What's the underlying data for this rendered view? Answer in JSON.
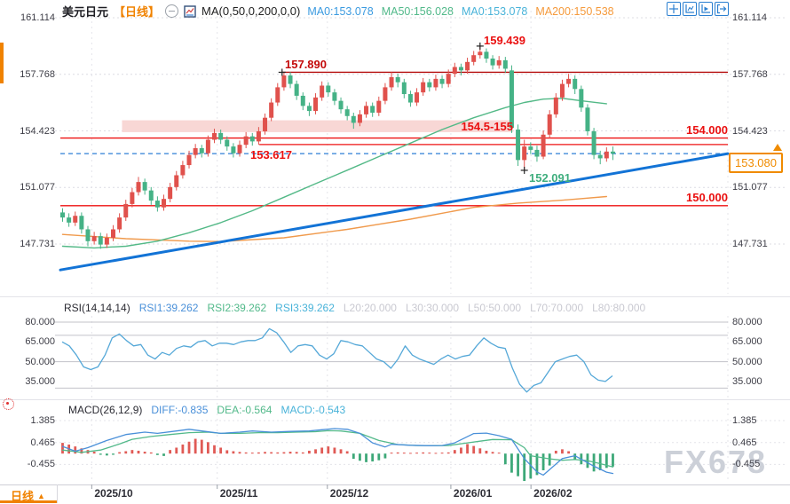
{
  "header": {
    "symbol": "美元日元",
    "timeframe": "【日线】",
    "ma_label": "MA(0,50,0,200,0,0)",
    "ma_values": [
      {
        "label": "MA0:153.078",
        "color": "#3a9ae0"
      },
      {
        "label": "MA50:156.028",
        "color": "#52b98a"
      },
      {
        "label": "MA0:153.078",
        "color": "#49b3d9"
      },
      {
        "label": "MA200:150.538",
        "color": "#f59a3c"
      }
    ]
  },
  "toolbar": {
    "icons": [
      "crosshair",
      "scale-left",
      "scale-play",
      "exit-right"
    ]
  },
  "price_axis": {
    "ticks": [
      "161.114",
      "157.768",
      "154.423",
      "151.077",
      "147.731"
    ]
  },
  "right_price_label": {
    "value": "153.080"
  },
  "x_axis": {
    "labels": [
      "2025/10",
      "2025/11",
      "2025/12",
      "2026/01",
      "2026/02"
    ],
    "fracs": [
      0.047,
      0.235,
      0.4,
      0.585,
      0.705
    ]
  },
  "bottom": {
    "timeframe": "日线",
    "arrow": "▲"
  },
  "watermark": "FX678",
  "rsi_header": {
    "title": "RSI(14,14,14)",
    "series": [
      {
        "label": "RSI1:39.262",
        "color": "#4a90d9"
      },
      {
        "label": "RSI2:39.262",
        "color": "#52b98a"
      },
      {
        "label": "RSI3:39.262",
        "color": "#49b3d9"
      }
    ],
    "levels": [
      "L20:20.000",
      "L30:30.000",
      "L50:50.000",
      "L70:70.000",
      "L80:80.000"
    ]
  },
  "macd_header": {
    "title": "MACD(26,12,9)",
    "values": [
      {
        "label": "DIFF:-0.835",
        "color": "#4a90d9"
      },
      {
        "label": "DEA:-0.564",
        "color": "#52b98a"
      },
      {
        "label": "MACD:-0.543",
        "color": "#49b3d9"
      }
    ]
  },
  "colors": {
    "up": "#e0514c",
    "down": "#45b286",
    "ma50": "#53b987",
    "ma200": "#f09a4c",
    "trend": "#1273d6",
    "current": "#2e7fd6",
    "rsi": "#55a8d8",
    "diff": "#4a90d9",
    "dea": "#52b98a",
    "histUp": "#e05a55",
    "histDown": "#3da878",
    "accent": "#f08200",
    "level": "#ee1111",
    "levelDark": "#b40b0b"
  },
  "chart_data": {
    "type": "candlestick",
    "title": "美元日元 日线 (USD/JPY daily)",
    "price": {
      "ylim": [
        144.8,
        161.7
      ],
      "candles": [
        [
          149.6,
          149.85,
          149.05,
          149.3
        ],
        [
          149.3,
          149.55,
          148.75,
          149.0
        ],
        [
          149.0,
          149.65,
          148.8,
          149.4
        ],
        [
          149.4,
          149.6,
          148.35,
          148.6
        ],
        [
          148.6,
          148.8,
          147.6,
          147.9
        ],
        [
          147.9,
          148.45,
          147.7,
          148.2
        ],
        [
          148.2,
          148.4,
          147.45,
          147.7
        ],
        [
          147.7,
          148.35,
          147.5,
          148.1
        ],
        [
          148.1,
          148.85,
          147.9,
          148.6
        ],
        [
          148.6,
          149.55,
          148.4,
          149.3
        ],
        [
          149.3,
          150.35,
          149.1,
          150.1
        ],
        [
          150.1,
          151.05,
          149.9,
          150.8
        ],
        [
          150.8,
          151.7,
          150.6,
          151.4
        ],
        [
          151.4,
          151.6,
          150.65,
          150.9
        ],
        [
          150.9,
          151.1,
          150.05,
          150.3
        ],
        [
          150.3,
          150.55,
          149.65,
          149.9
        ],
        [
          149.9,
          150.65,
          149.7,
          150.4
        ],
        [
          150.4,
          151.35,
          150.2,
          151.1
        ],
        [
          151.1,
          152.05,
          150.9,
          151.8
        ],
        [
          151.8,
          152.65,
          151.6,
          152.4
        ],
        [
          152.4,
          153.25,
          152.2,
          153.0
        ],
        [
          153.0,
          153.65,
          152.8,
          153.4
        ],
        [
          153.4,
          153.6,
          152.85,
          153.1
        ],
        [
          153.1,
          154.15,
          152.9,
          153.9
        ],
        [
          153.9,
          154.55,
          153.7,
          154.3
        ],
        [
          154.3,
          154.5,
          153.65,
          153.9
        ],
        [
          153.9,
          154.1,
          153.25,
          153.5
        ],
        [
          153.5,
          153.7,
          152.85,
          153.1
        ],
        [
          153.1,
          153.85,
          152.9,
          153.6
        ],
        [
          153.6,
          154.35,
          153.4,
          154.1
        ],
        [
          154.1,
          154.3,
          153.55,
          153.8
        ],
        [
          153.8,
          154.65,
          153.6,
          154.4
        ],
        [
          154.4,
          155.45,
          154.2,
          155.2
        ],
        [
          155.2,
          156.35,
          155.0,
          156.1
        ],
        [
          156.1,
          157.25,
          155.9,
          157.0
        ],
        [
          157.0,
          157.89,
          156.8,
          157.7
        ],
        [
          157.7,
          157.9,
          156.95,
          157.2
        ],
        [
          157.2,
          157.4,
          156.25,
          156.5
        ],
        [
          156.5,
          156.7,
          155.65,
          155.9
        ],
        [
          155.9,
          156.1,
          155.3,
          155.6
        ],
        [
          155.6,
          156.65,
          155.4,
          156.4
        ],
        [
          156.4,
          157.35,
          156.2,
          157.1
        ],
        [
          157.1,
          157.3,
          156.45,
          156.7
        ],
        [
          156.7,
          156.9,
          155.95,
          156.2
        ],
        [
          156.2,
          156.4,
          155.45,
          155.7
        ],
        [
          155.7,
          155.9,
          155.05,
          155.3
        ],
        [
          155.3,
          155.5,
          154.55,
          154.9
        ],
        [
          154.9,
          155.65,
          154.7,
          155.4
        ],
        [
          155.4,
          156.15,
          155.2,
          155.9
        ],
        [
          155.9,
          156.1,
          155.25,
          155.5
        ],
        [
          155.5,
          156.45,
          155.3,
          156.2
        ],
        [
          156.2,
          157.25,
          156.0,
          157.0
        ],
        [
          157.0,
          157.9,
          156.8,
          157.6
        ],
        [
          157.6,
          157.8,
          157.0,
          157.3
        ],
        [
          157.3,
          157.5,
          156.35,
          156.6
        ],
        [
          156.6,
          156.8,
          155.85,
          156.1
        ],
        [
          156.1,
          156.95,
          155.9,
          156.7
        ],
        [
          156.7,
          157.55,
          156.5,
          157.3
        ],
        [
          157.3,
          157.5,
          156.75,
          157.0
        ],
        [
          157.0,
          157.75,
          156.8,
          157.5
        ],
        [
          157.5,
          157.7,
          156.95,
          157.2
        ],
        [
          157.2,
          158.05,
          157.0,
          157.8
        ],
        [
          157.8,
          158.45,
          157.6,
          158.2
        ],
        [
          158.2,
          158.4,
          157.7,
          158.0
        ],
        [
          158.0,
          158.75,
          157.8,
          158.5
        ],
        [
          158.5,
          159.15,
          158.3,
          158.9
        ],
        [
          158.9,
          159.439,
          158.7,
          159.1
        ],
        [
          159.1,
          159.3,
          158.45,
          158.7
        ],
        [
          158.7,
          158.9,
          158.05,
          158.3
        ],
        [
          158.3,
          158.85,
          158.1,
          158.6
        ],
        [
          158.6,
          158.8,
          157.85,
          158.1
        ],
        [
          158.0,
          158.3,
          154.3,
          154.6
        ],
        [
          154.5,
          154.8,
          152.35,
          152.7
        ],
        [
          152.7,
          153.9,
          152.091,
          153.5
        ],
        [
          153.5,
          153.75,
          153.05,
          153.3
        ],
        [
          153.3,
          153.55,
          152.6,
          152.9
        ],
        [
          152.9,
          154.45,
          152.75,
          154.2
        ],
        [
          154.2,
          155.65,
          154.0,
          155.4
        ],
        [
          155.4,
          156.65,
          155.2,
          156.4
        ],
        [
          156.4,
          157.45,
          156.2,
          157.2
        ],
        [
          157.2,
          157.8,
          157.0,
          157.5
        ],
        [
          157.5,
          157.7,
          156.6,
          156.9
        ],
        [
          156.9,
          157.1,
          155.55,
          155.8
        ],
        [
          155.8,
          156.0,
          154.15,
          154.4
        ],
        [
          154.4,
          154.6,
          152.75,
          153.0
        ],
        [
          153.0,
          153.25,
          152.45,
          152.8
        ],
        [
          152.8,
          153.45,
          152.6,
          153.2
        ],
        [
          153.2,
          153.5,
          152.7,
          153.08
        ]
      ],
      "ma50_anchors": [
        [
          0,
          147.6
        ],
        [
          5,
          147.5
        ],
        [
          10,
          147.6
        ],
        [
          15,
          147.9
        ],
        [
          20,
          148.4
        ],
        [
          25,
          149.0
        ],
        [
          30,
          149.7
        ],
        [
          35,
          150.5
        ],
        [
          40,
          151.3
        ],
        [
          45,
          152.1
        ],
        [
          50,
          152.9
        ],
        [
          55,
          153.7
        ],
        [
          60,
          154.5
        ],
        [
          65,
          155.2
        ],
        [
          70,
          155.8
        ],
        [
          73,
          156.1
        ],
        [
          76,
          156.3
        ],
        [
          79,
          156.35
        ],
        [
          82,
          156.2
        ],
        [
          86,
          156.03
        ]
      ],
      "ma200_anchors": [
        [
          0,
          148.3
        ],
        [
          10,
          148.05
        ],
        [
          20,
          147.9
        ],
        [
          25,
          147.88
        ],
        [
          35,
          148.1
        ],
        [
          45,
          148.6
        ],
        [
          55,
          149.2
        ],
        [
          65,
          149.9
        ],
        [
          72,
          150.15
        ],
        [
          80,
          150.35
        ],
        [
          86,
          150.54
        ]
      ],
      "trendline": {
        "price1": 146.2,
        "price2": 153.08
      },
      "current_price": 153.08,
      "levels": [
        {
          "price": 157.89,
          "label": "157.890",
          "from_bar": 34.7,
          "dark": true
        },
        {
          "price": 154.0,
          "label": "154.000",
          "from_bar": null,
          "dark": false
        },
        {
          "price": 153.617,
          "label": "153.617",
          "from_bar": 31.1,
          "dark": false
        },
        {
          "price": 150.0,
          "label": "150.000",
          "from_bar": null,
          "dark": false
        }
      ],
      "zone": {
        "label": "154.5-155",
        "price_from": 154.35,
        "price_to": 155.05,
        "bar_from": 9.4,
        "bar_to": 71.2,
        "color": "#f8d7d5"
      },
      "markers": [
        {
          "bar": 66,
          "price": 159.439,
          "label": "159.439"
        },
        {
          "bar": 34.7,
          "price": 157.89,
          "label": ""
        },
        {
          "bar": 73,
          "price": 152.091,
          "label": "152.091"
        }
      ]
    },
    "rsi": {
      "ticks": [
        "80.000",
        "65.000",
        "50.000",
        "35.000"
      ],
      "gridlines": [
        80,
        70,
        50,
        30
      ],
      "values": [
        65,
        62,
        55,
        46,
        44,
        46,
        55,
        68,
        71,
        66,
        62,
        63,
        55,
        52,
        57,
        55,
        60,
        62,
        61,
        65,
        66,
        62,
        64,
        64,
        63,
        65,
        66,
        66,
        68,
        75,
        72,
        65,
        57,
        62,
        63,
        62,
        55,
        52,
        56,
        66,
        65,
        63,
        62,
        57,
        52,
        50,
        45,
        52,
        62,
        55,
        52,
        50,
        48,
        52,
        55,
        52,
        54,
        55,
        62,
        68,
        64,
        61,
        60,
        45,
        33,
        27,
        32,
        34,
        42,
        50,
        52,
        54,
        55,
        50,
        40,
        36,
        35,
        39.3
      ]
    },
    "macd": {
      "ticks": [
        "1.385",
        "0.465",
        "-0.455"
      ],
      "diff": [
        [
          0,
          0.3
        ],
        [
          2,
          0.1
        ],
        [
          4,
          0.25
        ],
        [
          7,
          0.55
        ],
        [
          10,
          0.8
        ],
        [
          13,
          0.9
        ],
        [
          15,
          0.85
        ],
        [
          18,
          0.95
        ],
        [
          20,
          1.02
        ],
        [
          22,
          0.95
        ],
        [
          25,
          0.85
        ],
        [
          28,
          0.9
        ],
        [
          30,
          0.95
        ],
        [
          33,
          0.9
        ],
        [
          36,
          0.93
        ],
        [
          39,
          0.95
        ],
        [
          41,
          1.0
        ],
        [
          43,
          1.05
        ],
        [
          45,
          1.02
        ],
        [
          47,
          0.85
        ],
        [
          49,
          0.45
        ],
        [
          51,
          0.28
        ],
        [
          52,
          0.39
        ],
        [
          55,
          0.35
        ],
        [
          58,
          0.33
        ],
        [
          60,
          0.34
        ],
        [
          62,
          0.45
        ],
        [
          65,
          0.84
        ],
        [
          67,
          0.86
        ],
        [
          69,
          0.75
        ],
        [
          71,
          0.6
        ],
        [
          73,
          -0.21
        ],
        [
          75,
          -0.77
        ],
        [
          76,
          -0.9
        ],
        [
          79,
          -0.21
        ],
        [
          81,
          -0.09
        ],
        [
          84,
          -0.53
        ],
        [
          86,
          -0.78
        ],
        [
          87,
          -0.835
        ]
      ],
      "dea": [
        [
          0,
          0.15
        ],
        [
          3,
          0.05
        ],
        [
          6,
          0.15
        ],
        [
          9,
          0.4
        ],
        [
          11,
          0.6
        ],
        [
          14,
          0.72
        ],
        [
          17,
          0.8
        ],
        [
          20,
          0.88
        ],
        [
          23,
          0.9
        ],
        [
          25,
          0.85
        ],
        [
          28,
          0.85
        ],
        [
          31,
          0.88
        ],
        [
          34,
          0.88
        ],
        [
          37,
          0.9
        ],
        [
          40,
          0.92
        ],
        [
          42,
          0.96
        ],
        [
          44,
          0.95
        ],
        [
          47,
          0.85
        ],
        [
          50,
          0.55
        ],
        [
          53,
          0.38
        ],
        [
          56,
          0.34
        ],
        [
          59,
          0.33
        ],
        [
          61,
          0.34
        ],
        [
          64,
          0.45
        ],
        [
          66,
          0.52
        ],
        [
          68,
          0.59
        ],
        [
          71,
          0.58
        ],
        [
          73,
          0.25
        ],
        [
          74,
          -0.09
        ],
        [
          77,
          -0.22
        ],
        [
          79,
          -0.28
        ],
        [
          81,
          -0.25
        ],
        [
          83,
          -0.3
        ],
        [
          85,
          -0.42
        ],
        [
          87,
          -0.564
        ]
      ],
      "hist": [
        0.45,
        0.38,
        0.3,
        0.22,
        0.15,
        0.08,
        -0.05,
        -0.08,
        -0.05,
        0.06,
        0.1,
        0.15,
        0.12,
        0.08,
        0.05,
        -0.06,
        -0.1,
        0.15,
        0.25,
        0.38,
        0.5,
        0.62,
        0.58,
        0.48,
        0.35,
        0.25,
        0.14,
        0.1,
        0.07,
        0.05,
        0.04,
        0.05,
        0.07,
        0.06,
        0.05,
        0.06,
        0.08,
        0.07,
        0.05,
        0.12,
        0.18,
        0.25,
        0.3,
        0.25,
        0.18,
        0.1,
        -0.22,
        -0.3,
        -0.36,
        -0.33,
        -0.28,
        -0.2,
        0.04,
        0.05,
        0.04,
        0.03,
        0.04,
        0.05,
        0.04,
        0.03,
        0.04,
        0.05,
        0.15,
        0.25,
        0.4,
        0.32,
        0.22,
        0.12,
        0.07,
        0.04,
        -0.45,
        -0.8,
        -0.95,
        -1.15,
        -1.05,
        -0.9,
        -0.7,
        -0.5,
        0.12,
        0.18,
        0.1,
        -0.25,
        -0.45,
        -0.6,
        -0.75,
        -0.7,
        -0.6,
        -0.543
      ]
    }
  }
}
